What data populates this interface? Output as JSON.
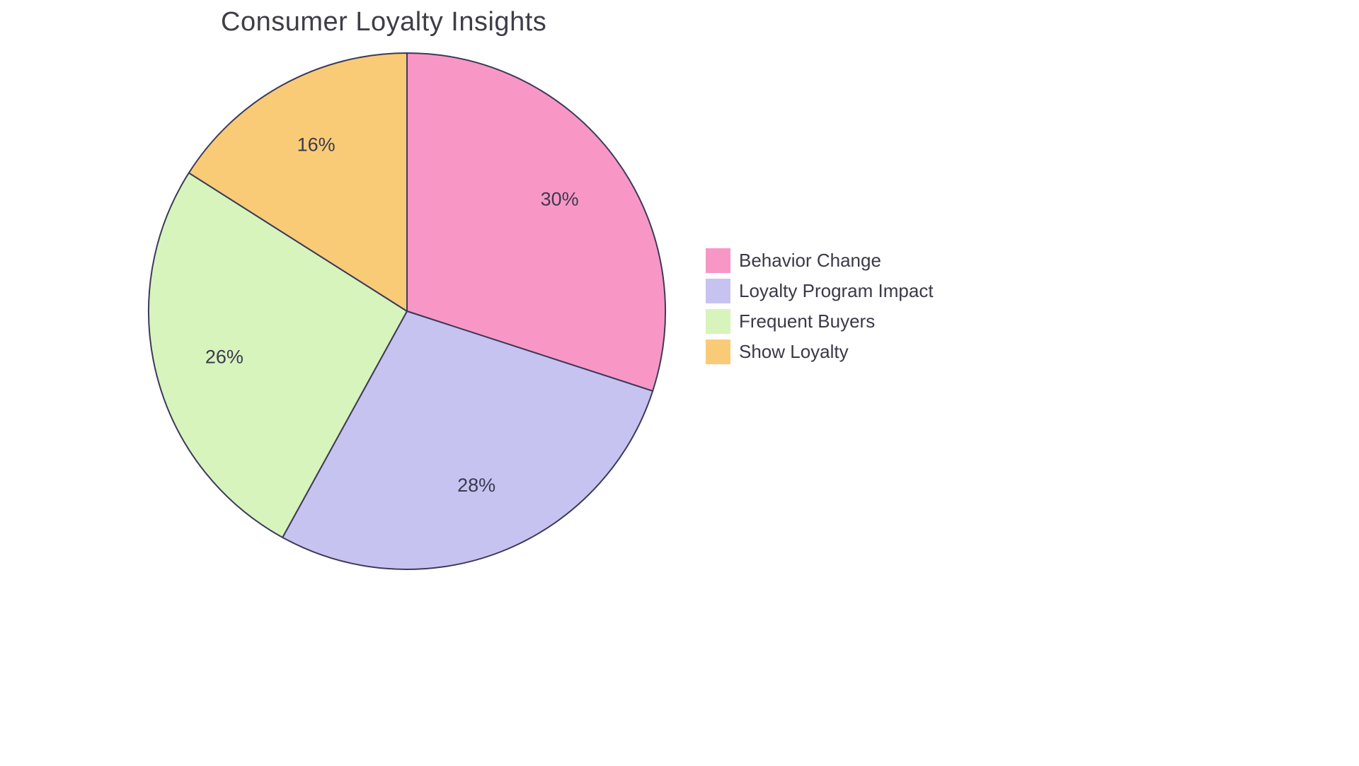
{
  "title": "Consumer Loyalty Insights",
  "chart_data": {
    "type": "pie",
    "title": "Consumer Loyalty Insights",
    "labels": [
      "Behavior Change",
      "Loyalty Program Impact",
      "Frequent Buyers",
      "Show Loyalty"
    ],
    "values": [
      30,
      28,
      26,
      16
    ],
    "unit": "%",
    "slice_labels": [
      "30%",
      "28%",
      "26%",
      "16%"
    ],
    "colors": [
      "#F897C6",
      "#C7C3F1",
      "#D7F4BC",
      "#F9CB77"
    ],
    "slice_border_color": "#3B3A5A",
    "label_color": "#3C3A4E",
    "legend_position": "right",
    "start_angle_deg": -90,
    "direction": "clockwise",
    "background_color": "#FFFFFF"
  }
}
